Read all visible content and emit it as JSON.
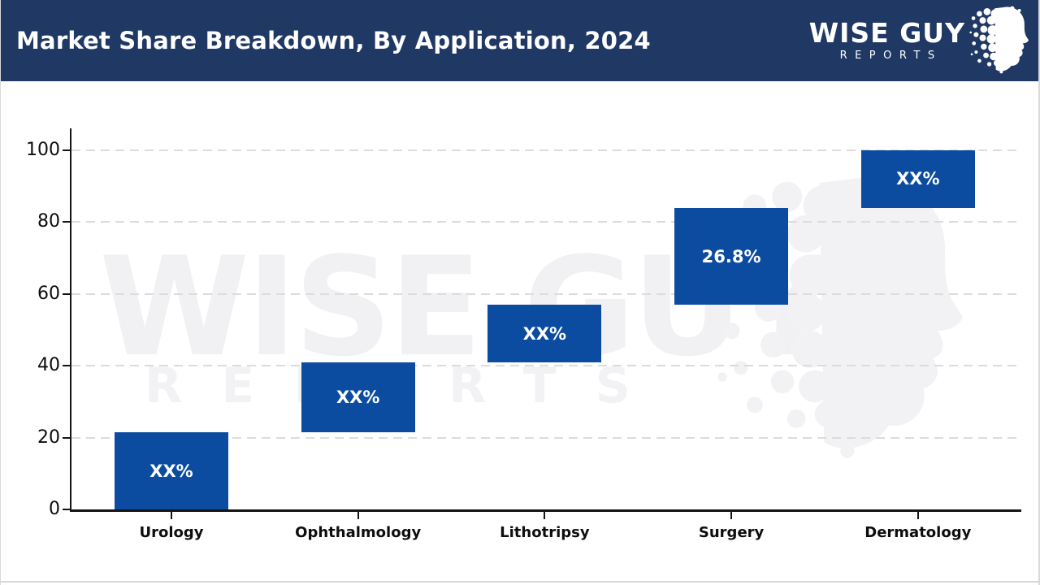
{
  "header": {
    "title": "Market Share Breakdown, By Application, 2024",
    "logo": {
      "line1": "WISE GUY",
      "line2": "REPORTS"
    }
  },
  "watermark": {
    "line1": "WISE GUY",
    "line2": "REPORTS"
  },
  "colors": {
    "header_bg": "#1f3864",
    "bar": "#0b4ca1",
    "bar_label": "#ffffff",
    "gridline": "#dcdcdc",
    "axis": "#151515",
    "watermark": "#f1f1f3"
  },
  "chart_data": {
    "type": "bar",
    "subtype": "waterfall-floating-bars",
    "title": "Market Share Breakdown, By Application, 2024",
    "xlabel": "",
    "ylabel": "",
    "categories": [
      "Urology",
      "Ophthalmology",
      "Lithotripsy",
      "Surgery",
      "Dermatology"
    ],
    "segments": [
      {
        "category": "Urology",
        "start": 0,
        "end": 21.4,
        "label": "XX%"
      },
      {
        "category": "Ophthalmology",
        "start": 21.4,
        "end": 40.8,
        "label": "XX%"
      },
      {
        "category": "Lithotripsy",
        "start": 40.8,
        "end": 57.0,
        "label": "XX%"
      },
      {
        "category": "Surgery",
        "start": 57.0,
        "end": 83.8,
        "label": "26.8%"
      },
      {
        "category": "Dermatology",
        "start": 83.8,
        "end": 100.0,
        "label": "XX%"
      }
    ],
    "yticks": [
      0,
      20,
      40,
      60,
      80,
      100
    ],
    "ylim": [
      0,
      106
    ],
    "grid": "horizontal-dashed",
    "legend": "none",
    "bar_color": "#0b4ca1"
  }
}
